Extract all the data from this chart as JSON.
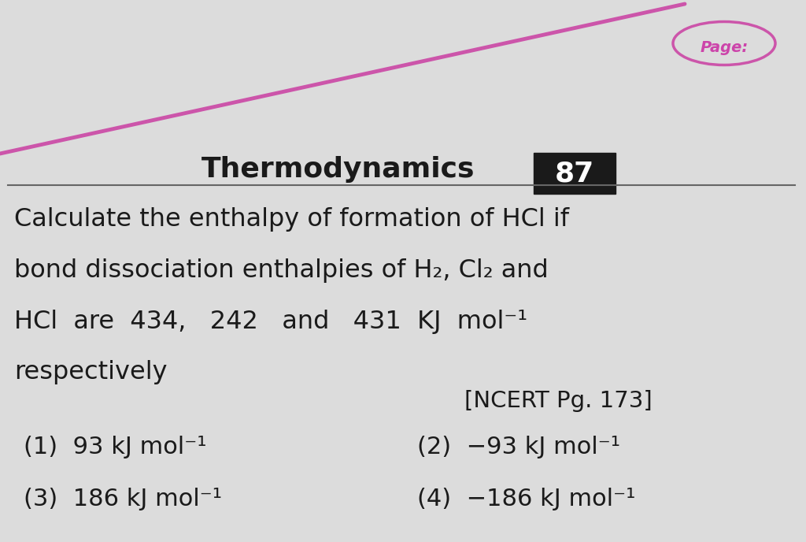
{
  "bg_color": "#dcdcdc",
  "title": "Thermodynamics",
  "question_number": "87",
  "question_text_lines": [
    "Calculate the enthalpy of formation of HCl if",
    "bond dissociation enthalpies of H₂, Cl₂ and",
    "HCl  are  434,   242   and   431  KJ  mol⁻¹",
    "respectively"
  ],
  "ncert_ref": "[NCERT Pg. 173]",
  "options": [
    {
      "num": "(1)  93 kJ mol⁻¹",
      "col": 0
    },
    {
      "num": "(2)  −93 kJ mol⁻¹",
      "col": 1
    },
    {
      "num": "(3)  186 kJ mol⁻¹",
      "col": 0
    },
    {
      "num": "(4)  −186 kJ mol⁻¹",
      "col": 1
    }
  ],
  "title_fontsize": 26,
  "number_box_color": "#1a1a1a",
  "number_text_color": "#ffffff",
  "question_fontsize": 23,
  "option_fontsize": 22,
  "text_color": "#1a1a1a",
  "pink_color": "#cc55aa",
  "page_label": "Page:",
  "page_label_color": "#cc44aa"
}
